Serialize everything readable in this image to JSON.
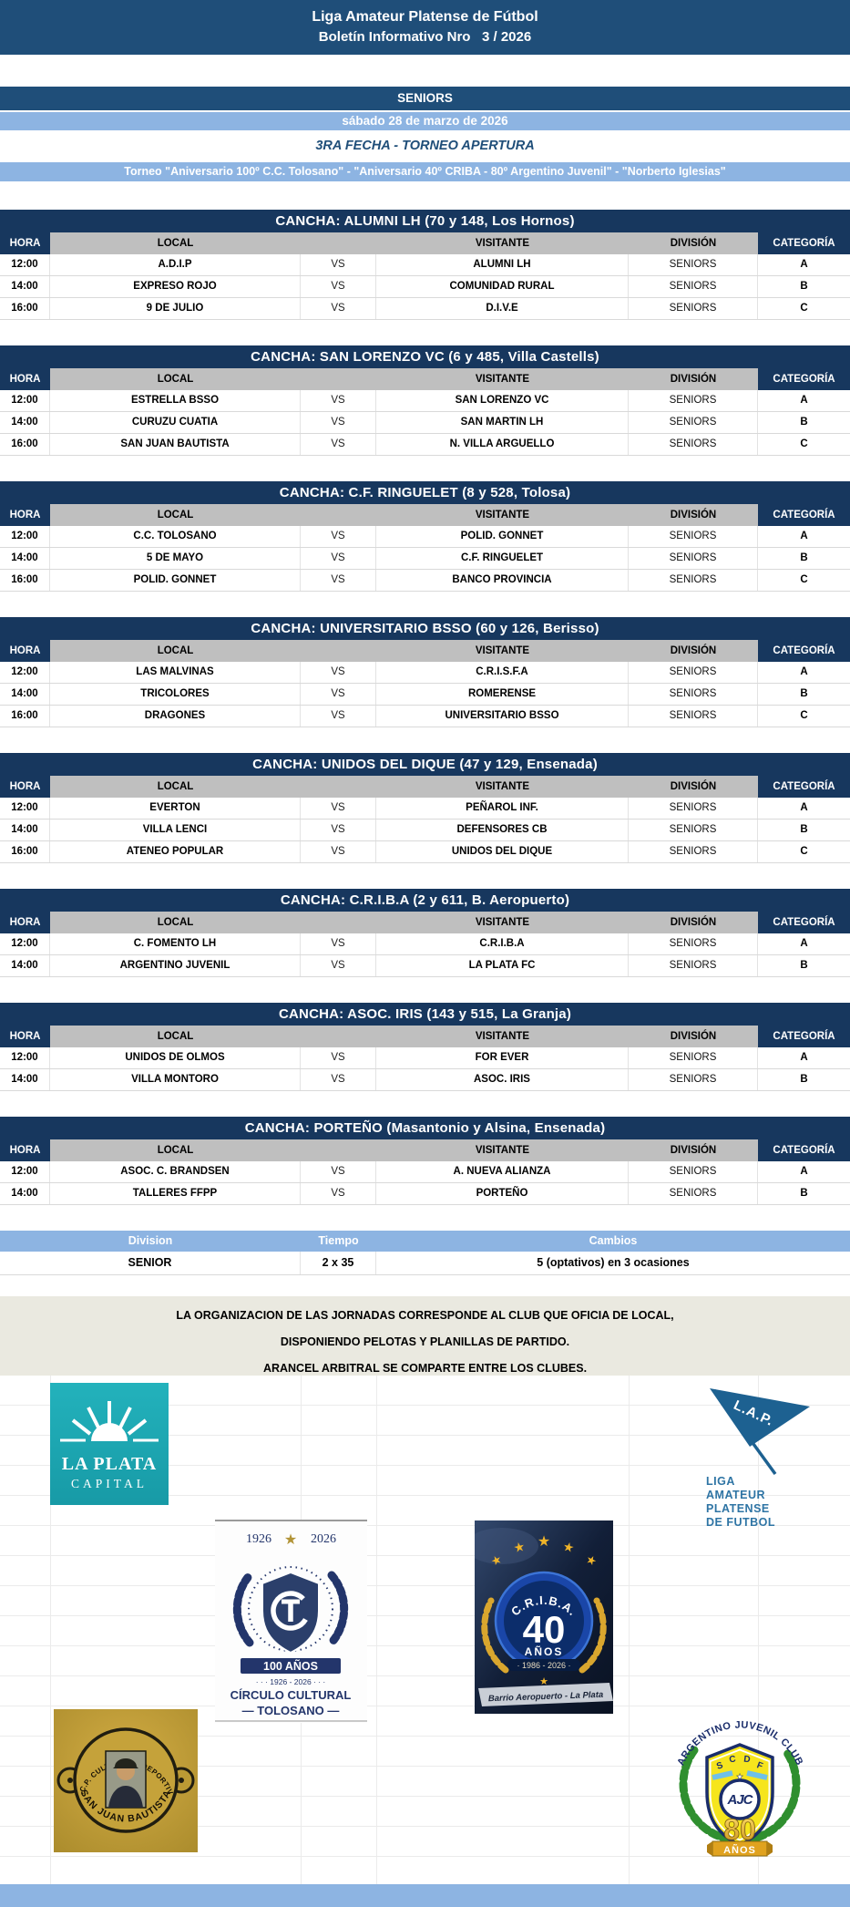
{
  "header": {
    "title": "Liga Amateur Platense de Fútbol",
    "subtitle": "Boletín Informativo Nro   3 / 2026"
  },
  "banners": {
    "division": "SENIORS",
    "date": "sábado 28 de marzo de 2026",
    "round": "3RA FECHA - TORNEO APERTURA",
    "tournament": "Torneo \"Aniversario 100º C.C. Tolosano\" - \"Aniversario 40º CRIBA - 80º Argentino Juvenil\" - \"Norberto Iglesias\""
  },
  "columns": {
    "hora": "HORA",
    "local": "LOCAL",
    "visitante": "VISITANTE",
    "division": "DIVISIÓN",
    "categoria": "CATEGORÍA"
  },
  "vs_label": "VS",
  "tables": [
    {
      "venue": "CANCHA: ALUMNI LH (70 y 148, Los Hornos)",
      "rows": [
        {
          "hora": "12:00",
          "local": "A.D.I.P",
          "visitante": "ALUMNI LH",
          "division": "SENIORS",
          "categoria": "A"
        },
        {
          "hora": "14:00",
          "local": "EXPRESO ROJO",
          "visitante": "COMUNIDAD RURAL",
          "division": "SENIORS",
          "categoria": "B"
        },
        {
          "hora": "16:00",
          "local": "9 DE JULIO",
          "visitante": "D.I.V.E",
          "division": "SENIORS",
          "categoria": "C"
        }
      ]
    },
    {
      "venue": "CANCHA: SAN LORENZO VC (6 y 485, Villa Castells)",
      "rows": [
        {
          "hora": "12:00",
          "local": "ESTRELLA BSSO",
          "visitante": "SAN LORENZO VC",
          "division": "SENIORS",
          "categoria": "A"
        },
        {
          "hora": "14:00",
          "local": "CURUZU CUATIA",
          "visitante": "SAN MARTIN LH",
          "division": "SENIORS",
          "categoria": "B"
        },
        {
          "hora": "16:00",
          "local": "SAN JUAN BAUTISTA",
          "visitante": "N. VILLA ARGUELLO",
          "division": "SENIORS",
          "categoria": "C"
        }
      ]
    },
    {
      "venue": "CANCHA: C.F. RINGUELET (8 y 528, Tolosa)",
      "rows": [
        {
          "hora": "12:00",
          "local": "C.C. TOLOSANO",
          "visitante": "POLID. GONNET",
          "division": "SENIORS",
          "categoria": "A"
        },
        {
          "hora": "14:00",
          "local": "5 DE MAYO",
          "visitante": "C.F. RINGUELET",
          "division": "SENIORS",
          "categoria": "B"
        },
        {
          "hora": "16:00",
          "local": "POLID. GONNET",
          "visitante": "BANCO PROVINCIA",
          "division": "SENIORS",
          "categoria": "C"
        }
      ]
    },
    {
      "venue": "CANCHA: UNIVERSITARIO BSSO (60 y 126, Berisso)",
      "rows": [
        {
          "hora": "12:00",
          "local": "LAS MALVINAS",
          "visitante": "C.R.I.S.F.A",
          "division": "SENIORS",
          "categoria": "A"
        },
        {
          "hora": "14:00",
          "local": "TRICOLORES",
          "visitante": "ROMERENSE",
          "division": "SENIORS",
          "categoria": "B"
        },
        {
          "hora": "16:00",
          "local": "DRAGONES",
          "visitante": "UNIVERSITARIO BSSO",
          "division": "SENIORS",
          "categoria": "C"
        }
      ]
    },
    {
      "venue": "CANCHA: UNIDOS DEL DIQUE (47 y 129, Ensenada)",
      "rows": [
        {
          "hora": "12:00",
          "local": "EVERTON",
          "visitante": "PEÑAROL INF.",
          "division": "SENIORS",
          "categoria": "A"
        },
        {
          "hora": "14:00",
          "local": "VILLA LENCI",
          "visitante": "DEFENSORES CB",
          "division": "SENIORS",
          "categoria": "B"
        },
        {
          "hora": "16:00",
          "local": "ATENEO POPULAR",
          "visitante": "UNIDOS DEL DIQUE",
          "division": "SENIORS",
          "categoria": "C"
        }
      ]
    },
    {
      "venue": "CANCHA: C.R.I.B.A (2 y 611, B. Aeropuerto)",
      "rows": [
        {
          "hora": "12:00",
          "local": "C. FOMENTO LH",
          "visitante": "C.R.I.B.A",
          "division": "SENIORS",
          "categoria": "A"
        },
        {
          "hora": "14:00",
          "local": "ARGENTINO JUVENIL",
          "visitante": "LA PLATA FC",
          "division": "SENIORS",
          "categoria": "B"
        }
      ]
    },
    {
      "venue": "CANCHA: ASOC. IRIS (143 y 515, La Granja)",
      "rows": [
        {
          "hora": "12:00",
          "local": "UNIDOS DE OLMOS",
          "visitante": "FOR EVER",
          "division": "SENIORS",
          "categoria": "A"
        },
        {
          "hora": "14:00",
          "local": "VILLA MONTORO",
          "visitante": "ASOC. IRIS",
          "division": "SENIORS",
          "categoria": "B"
        }
      ]
    },
    {
      "venue": "CANCHA: PORTEÑO (Masantonio y Alsina, Ensenada)",
      "rows": [
        {
          "hora": "12:00",
          "local": "ASOC. C. BRANDSEN",
          "visitante": "A. NUEVA ALIANZA",
          "division": "SENIORS",
          "categoria": "A"
        },
        {
          "hora": "14:00",
          "local": "TALLERES FFPP",
          "visitante": "PORTEÑO",
          "division": "SENIORS",
          "categoria": "B"
        }
      ]
    }
  ],
  "rules": {
    "headers": {
      "division": "Division",
      "tiempo": "Tiempo",
      "cambios": "Cambios"
    },
    "row": {
      "division": "SENIOR",
      "tiempo": "2 x 35",
      "cambios": "5 (optativos) en 3 ocasiones"
    }
  },
  "notes": [
    "LA ORGANIZACION DE LAS JORNADAS CORRESPONDE AL CLUB QUE OFICIA DE LOCAL,",
    "DISPONIENDO PELOTAS Y PLANILLAS DE PARTIDO.",
    "ARANCEL ARBITRAL SE COMPARTE ENTRE LOS CLUBES."
  ],
  "logos": {
    "la_plata": {
      "line1": "LA PLATA",
      "line2": "CAPITAL"
    },
    "lap": {
      "flag": "L.A.P.",
      "lines": [
        "LIGA",
        "AMATEUR",
        "PLATENSE",
        "DE  FUTBOL"
      ]
    },
    "tolosano": {
      "year_left": "1926",
      "star": "★",
      "year_right": "2026",
      "monogram_t": "T",
      "banner": "100 AÑOS",
      "range": "· · · 1926 - 2026 · · ·",
      "name1": "CÍRCULO CULTURAL",
      "name2": "— TOLOSANO —"
    },
    "criba": {
      "stars": [
        "★",
        "★",
        "★",
        "★",
        "★"
      ],
      "name": "C.R.I.B.A.",
      "number": "40",
      "anos": "AÑOS",
      "range": "· 1986 - 2026 ·",
      "ribbon": "Barrio Aeropuerto - La Plata",
      "bottom_star": "★"
    },
    "san_juan": {
      "top": "A.C.P. CULTURAL Y DEPORTIVA",
      "bottom": "SAN JUAN BAUTISTA"
    },
    "argentino": {
      "top": "ARGENTINO JUVENIL CLUB",
      "letters": [
        "S",
        "C",
        "D",
        "F"
      ],
      "star": "★",
      "monogram": "AJC",
      "number": "80",
      "anos": "AÑOS"
    }
  },
  "colors": {
    "navy_header": "#1F4E79",
    "navy_dark": "#17375E",
    "light_blue": "#8DB4E2",
    "header_gray": "#BFBFBF",
    "notes_bg": "#EAE9E0",
    "teal_logo": "#1FAFB8"
  }
}
